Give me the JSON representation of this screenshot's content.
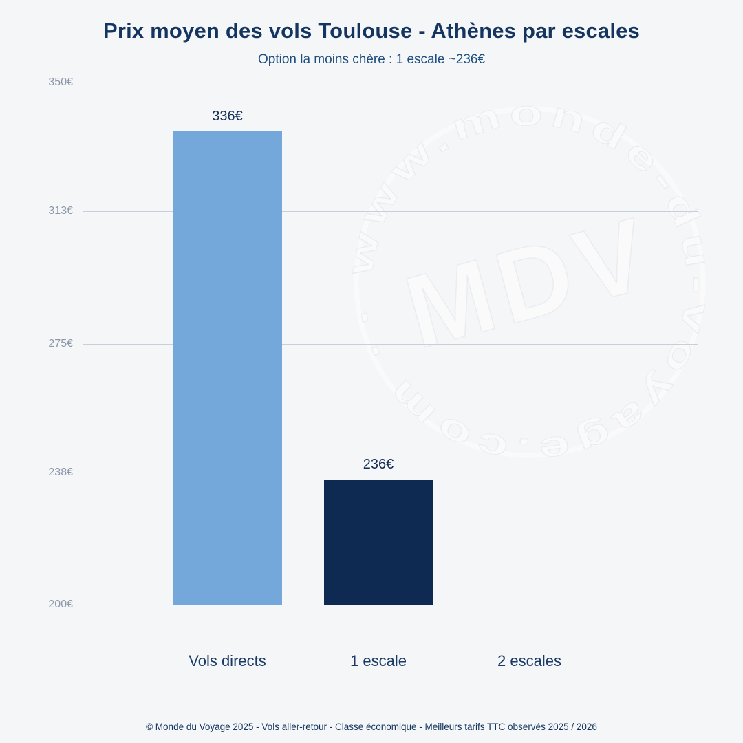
{
  "page": {
    "title": "Prix moyen des vols Toulouse - Athènes par escales",
    "subtitle": "Option la moins chère : 1 escale ~236€",
    "footer": "© Monde du Voyage 2025 - Vols aller-retour - Classe économique - Meilleurs tarifs TTC observés 2025 / 2026"
  },
  "watermark": {
    "circle_text": "· www.monde-du-voyage.com ·",
    "center_text": "MDV"
  },
  "chart_data": {
    "type": "bar",
    "title": "Prix moyen des vols Toulouse - Athènes par escales",
    "subtitle": "Option la moins chère : 1 escale ~236€",
    "categories": [
      "Vols directs",
      "1 escale",
      "2 escales"
    ],
    "values": [
      336,
      236,
      null
    ],
    "value_labels": [
      "336€",
      "236€",
      ""
    ],
    "unit": "€",
    "bar_colors": [
      "#74a7da",
      "#0e2a52",
      "#74a7da"
    ],
    "ylim": [
      200,
      350
    ],
    "yticks": [
      350,
      313,
      275,
      238,
      200
    ],
    "ytick_labels": [
      "350€",
      "313€",
      "275€",
      "238€",
      "200€"
    ],
    "grid": true,
    "legend": "none",
    "xlabel": "",
    "ylabel": ""
  },
  "colors": {
    "background": "#f5f6f8",
    "title": "#14355f",
    "subtitle": "#1d4e7e",
    "tick": "#8d97aa",
    "grid": "#c9cfda",
    "category": "#1b3b66",
    "value_label": "#132f58",
    "footer": "#14355f",
    "footer_line": "#56718f"
  }
}
